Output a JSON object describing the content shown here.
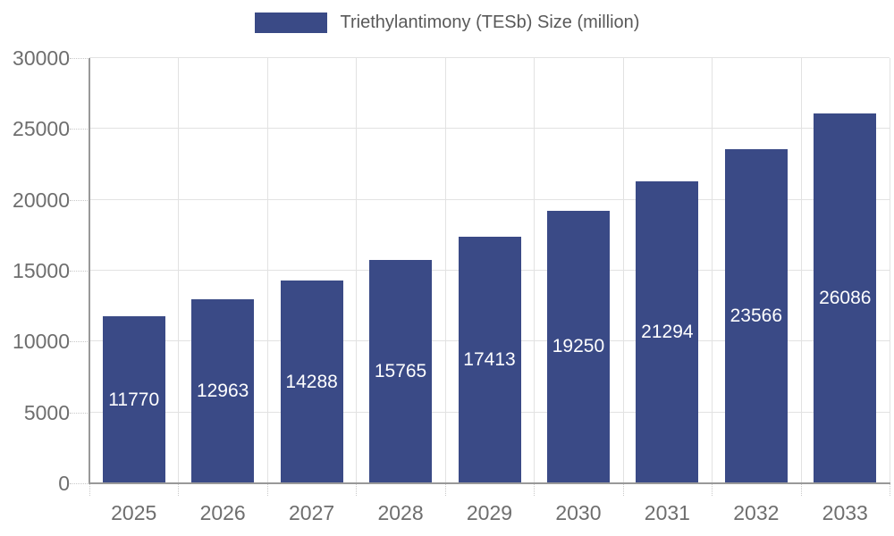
{
  "legend": {
    "label": "Triethylantimony (TESb) Size (million)"
  },
  "colors": {
    "bar": "#3A4A86",
    "grid_line": "#E2E2E2",
    "axis_line": "#999999",
    "tick_line": "#C9C9C9",
    "axis_label": "#6E6E6E",
    "legend_text": "#595959",
    "value_label": "#FFFFFF",
    "background": "#FFFFFF"
  },
  "chart_data": {
    "type": "bar",
    "title": "Triethylantimony (TESb) Size (million)",
    "series_name": "Triethylantimony (TESb) Size (million)",
    "categories": [
      "2025",
      "2026",
      "2027",
      "2028",
      "2029",
      "2030",
      "2031",
      "2032",
      "2033"
    ],
    "values": [
      11770,
      12963,
      14288,
      15765,
      17413,
      19250,
      21294,
      23566,
      26086
    ],
    "xlabel": "",
    "ylabel": "",
    "ylim": [
      0,
      30000
    ],
    "y_ticks": [
      0,
      5000,
      10000,
      15000,
      20000,
      25000,
      30000
    ],
    "grid": true,
    "legend_position": "top",
    "value_labels": "inside-middle"
  }
}
